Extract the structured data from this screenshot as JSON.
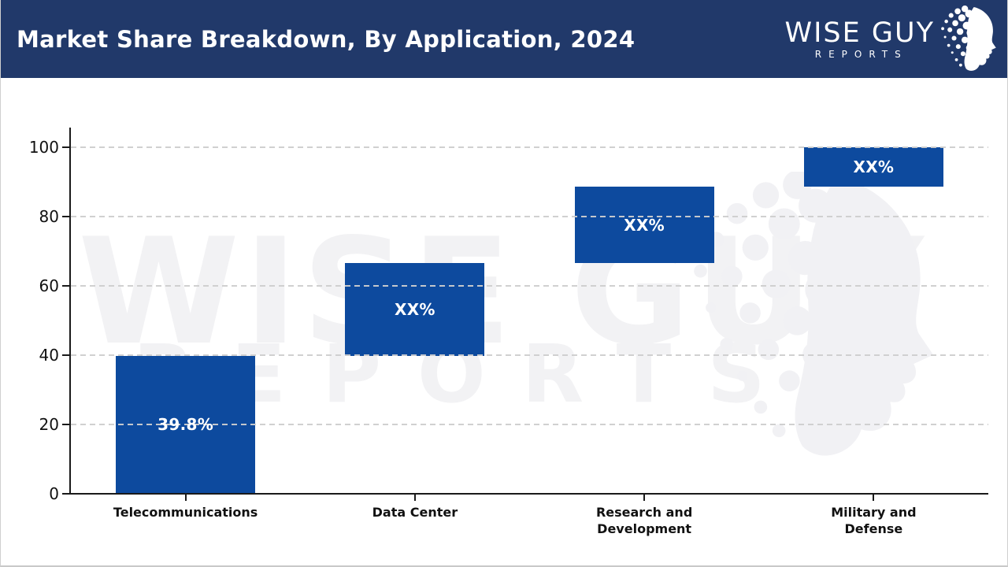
{
  "header": {
    "title": "Market Share Breakdown, By Application, 2024",
    "logo": {
      "line1": "WISE GUY",
      "line2": "REPORTS",
      "face_icon": "dotted-face-profile-icon"
    }
  },
  "watermark": {
    "line1": "WISE GUY",
    "line2": "REPORTS",
    "face_icon": "dotted-face-profile-icon",
    "color": "#f2f2f4"
  },
  "chart_data": {
    "type": "bar",
    "variant": "waterfall",
    "title": "Market Share Breakdown, By Application, 2024",
    "categories": [
      "Telecommunications",
      "Data Center",
      "Research and Development",
      "Military and Defense"
    ],
    "categories_wrapped": [
      [
        "Telecommunications"
      ],
      [
        "Data Center"
      ],
      [
        "Research and",
        "Development"
      ],
      [
        "Military and",
        "Defense"
      ]
    ],
    "segments": [
      {
        "category": "Telecommunications",
        "start": 0,
        "end": 39.8,
        "label": "39.8%"
      },
      {
        "category": "Data Center",
        "start": 39.8,
        "end": 66.5,
        "label": "XX%"
      },
      {
        "category": "Research and Development",
        "start": 66.5,
        "end": 88.6,
        "label": "XX%"
      },
      {
        "category": "Military and Defense",
        "start": 88.6,
        "end": 100,
        "label": "XX%"
      }
    ],
    "xlabel": "",
    "ylabel": "",
    "ylim": [
      0,
      100
    ],
    "yticks": [
      0,
      20,
      40,
      60,
      80,
      100
    ],
    "grid": "horizontal-dashed-over-bars",
    "legend": "none",
    "bar_color": "#0d4a9e",
    "bar_label_color": "#ffffff"
  },
  "colors": {
    "header_bg": "#21396a",
    "bar": "#0d4a9e",
    "grid": "#cecece",
    "axis": "#1a1a1a",
    "watermark": "#f2f2f4",
    "page_border": "#cfcfcf"
  }
}
